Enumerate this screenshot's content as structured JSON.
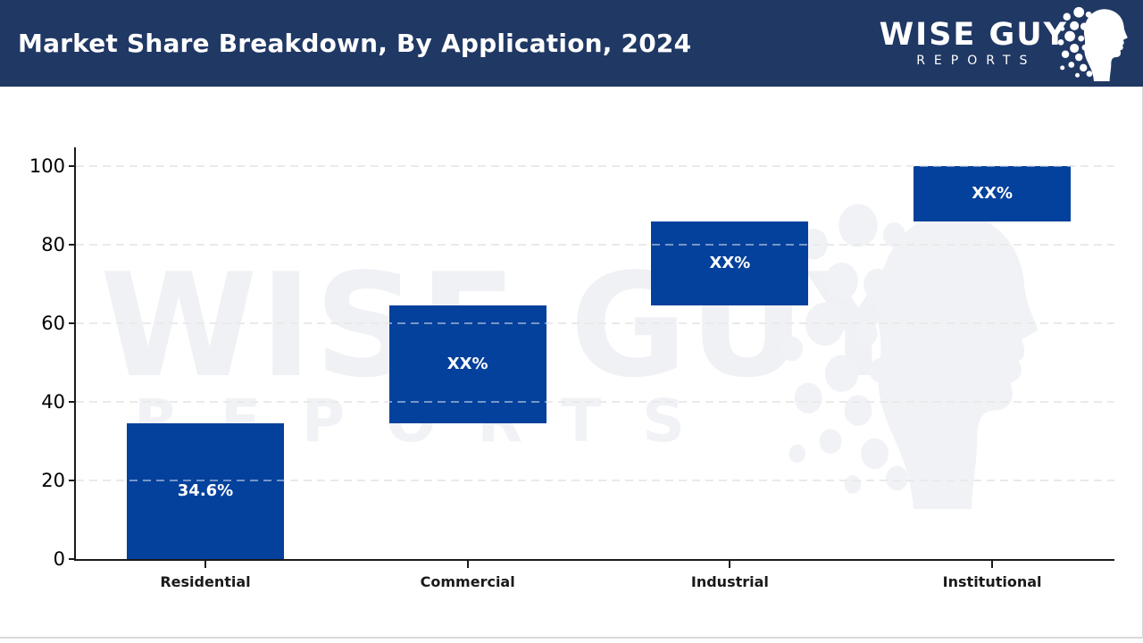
{
  "header": {
    "title": "Market Share Breakdown, By Application, 2024",
    "logo": {
      "line1": "WISE GUY",
      "line2": "REPORTS"
    }
  },
  "watermark": {
    "line1": "WISE GUY",
    "line2": "REPORTS"
  },
  "colors": {
    "header_bg": "#203864",
    "bar": "#04419c",
    "grid": "#d9d9d9",
    "axis": "#1a1a1a",
    "watermark": "#f0f1f4",
    "bar_label": "#ffffff"
  },
  "chart_data": {
    "type": "bar",
    "subtype": "floating-waterfall",
    "title": "Market Share Breakdown, By Application, 2024",
    "categories": [
      "Residential",
      "Commercial",
      "Industrial",
      "Institutional"
    ],
    "segments": [
      {
        "category": "Residential",
        "start": 0,
        "end": 34.6,
        "label": "34.6%"
      },
      {
        "category": "Commercial",
        "start": 34.6,
        "end": 64.5,
        "label": "XX%"
      },
      {
        "category": "Industrial",
        "start": 64.5,
        "end": 86,
        "label": "XX%"
      },
      {
        "category": "Institutional",
        "start": 86,
        "end": 100,
        "label": "XX%"
      }
    ],
    "ylim": [
      0,
      100
    ],
    "yticks": [
      0,
      20,
      40,
      60,
      80,
      100
    ],
    "grid": "horizontal-dashed",
    "legend": "none",
    "xlabel": "",
    "ylabel": ""
  }
}
